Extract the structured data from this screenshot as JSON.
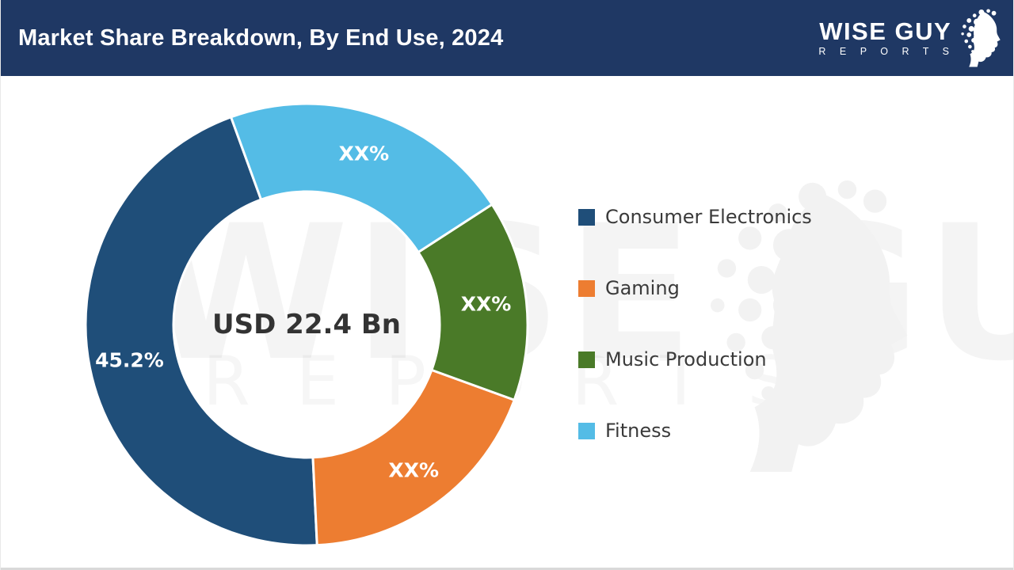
{
  "header": {
    "title": "Market Share Breakdown, By End Use, 2024",
    "logo": {
      "line1": "WISE GUY",
      "line2": "R E P O R T S"
    }
  },
  "watermark": {
    "line1": "WISE GUY",
    "line2": "REPORTS"
  },
  "chart_data": {
    "type": "pie",
    "subtype": "donut",
    "title": "Market Share Breakdown, By End Use, 2024",
    "center_label": "USD 22.4 Bn",
    "legend_position": "right",
    "start_angle_deg": 110,
    "direction": "counterclockwise",
    "series": [
      {
        "name": "Consumer Electronics",
        "value_pct": 45.2,
        "display_label": "45.2%",
        "color": "#1F4E79"
      },
      {
        "name": "Gaming",
        "value_pct": 18.7,
        "display_label": "XX%",
        "color": "#ED7D31"
      },
      {
        "name": "Music Production",
        "value_pct": 14.7,
        "display_label": "XX%",
        "color": "#4A7A28"
      },
      {
        "name": "Fitness",
        "value_pct": 21.4,
        "display_label": "XX%",
        "color": "#54BCE6"
      }
    ]
  },
  "colors": {
    "header_bg": "#1F3864",
    "text_dark": "#333333",
    "slice_gap": "#ffffff",
    "bottom_rule": "#d9d9d9",
    "watermark": "#f4f4f4"
  }
}
